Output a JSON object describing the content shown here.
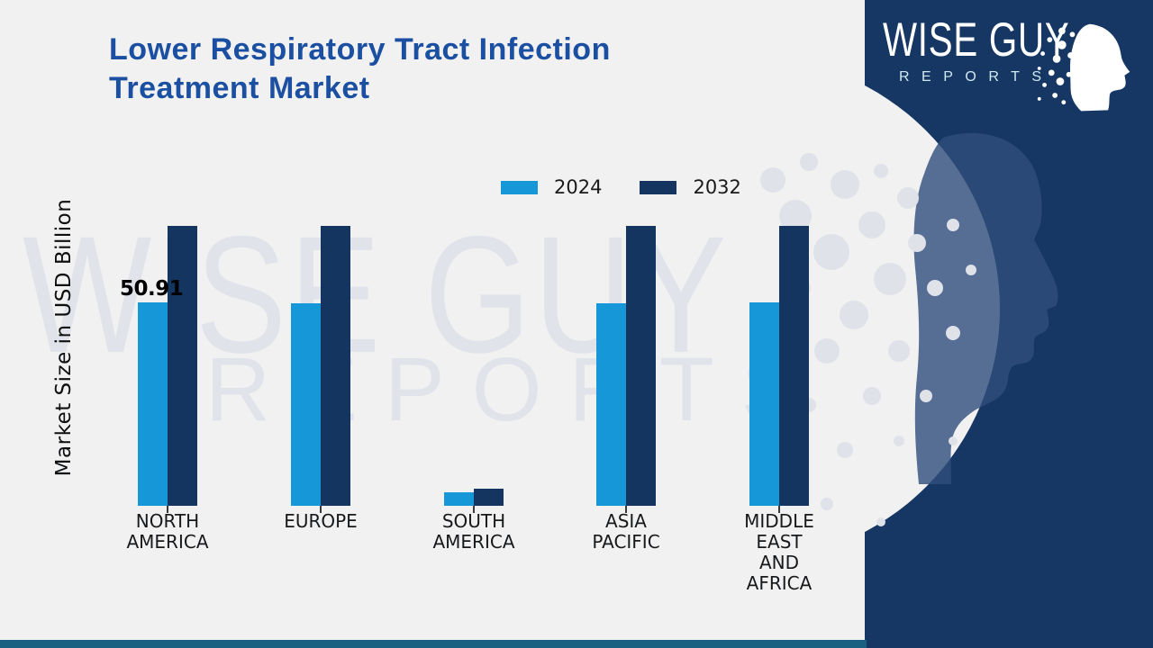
{
  "page": {
    "background": "#f1f1f2",
    "brand_panel_color": "#163763",
    "bottom_stripe_color": "#1a6080",
    "watermark_color": "#e0e3ea"
  },
  "title": {
    "text": "Lower Respiratory Tract Infection\nTreatment Market",
    "color": "#1b4fa1"
  },
  "y_axis_label": "Market Size in USD Billion",
  "legend": {
    "items": [
      {
        "label": "2024",
        "color": "#1697d8"
      },
      {
        "label": "2032",
        "color": "#143560"
      }
    ]
  },
  "watermark": {
    "line1": "WISE GUY",
    "line2": "REPORTS"
  },
  "logo": {
    "line1": "WISE GUY",
    "line2": "REPORTS"
  },
  "chart_data": {
    "type": "bar",
    "title": "Lower Respiratory Tract Infection Treatment Market",
    "ylabel": "Market Size in USD Billion",
    "unit": "USD Billion",
    "categories": [
      "NORTH AMERICA",
      "EUROPE",
      "SOUTH AMERICA",
      "ASIA PACIFIC",
      "MIDDLE EAST AND AFRICA"
    ],
    "category_display_lines": [
      [
        "NORTH",
        "AMERICA"
      ],
      [
        "EUROPE"
      ],
      [
        "SOUTH",
        "AMERICA"
      ],
      [
        "ASIA",
        "PACIFIC"
      ],
      [
        "MIDDLE",
        "EAST",
        "AND",
        "AFRICA"
      ]
    ],
    "series": [
      {
        "name": "2024",
        "color": "#1697d8",
        "values": [
          50.91,
          50.7,
          3.4,
          50.6,
          50.8
        ]
      },
      {
        "name": "2032",
        "color": "#143560",
        "values": [
          70.1,
          70.0,
          4.3,
          70.0,
          70.1
        ]
      }
    ],
    "value_labels": [
      {
        "series": "2024",
        "category": "NORTH AMERICA",
        "text": "50.91"
      }
    ],
    "note": "Only the 50.91 label is printed on the chart; all other values are estimated from bar heights.",
    "legend_position": "top",
    "gridlines": false,
    "y_axis_ticks_visible": false
  }
}
